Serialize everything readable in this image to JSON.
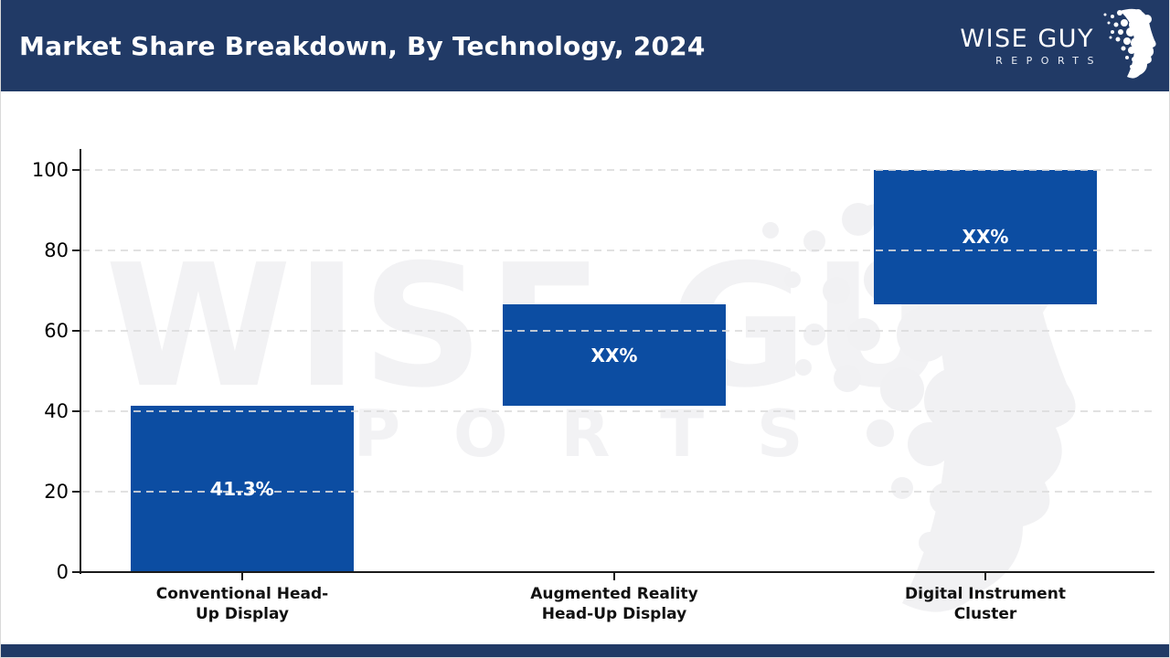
{
  "header": {
    "title": "Market Share Breakdown, By Technology, 2024",
    "bg_color": "#213a66",
    "logo": {
      "line1": "WISE GUY",
      "line2": "REPORTS"
    }
  },
  "watermark": {
    "line1": "WISE GUY",
    "line2": "REPORTS"
  },
  "chart_data": {
    "type": "bar",
    "subtype": "floating-waterfall",
    "title": "Market Share Breakdown, By Technology, 2024",
    "categories": [
      "Conventional Head-\nUp Display",
      "Augmented Reality\nHead-Up Display",
      "Digital Instrument\nCluster"
    ],
    "segments": [
      {
        "category": "Conventional Head-Up Display",
        "start": 0,
        "end": 41.3,
        "label": "41.3%"
      },
      {
        "category": "Augmented Reality Head-Up Display",
        "start": 41.3,
        "end": 66.6,
        "label": "XX%"
      },
      {
        "category": "Digital Instrument Cluster",
        "start": 66.6,
        "end": 100,
        "label": "XX%"
      }
    ],
    "xlabel": "",
    "ylabel": "",
    "yticks": [
      0,
      20,
      40,
      60,
      80,
      100
    ],
    "ylim": [
      0,
      105
    ],
    "grid": "horizontal-dashed",
    "legend": null,
    "bar_color": "#0c4da2",
    "grid_color": "#dcdcdc",
    "axis_color": "#1a1a1a",
    "bar_label_color": "#ffffff"
  },
  "footer": {
    "bg_color": "#213a66"
  }
}
